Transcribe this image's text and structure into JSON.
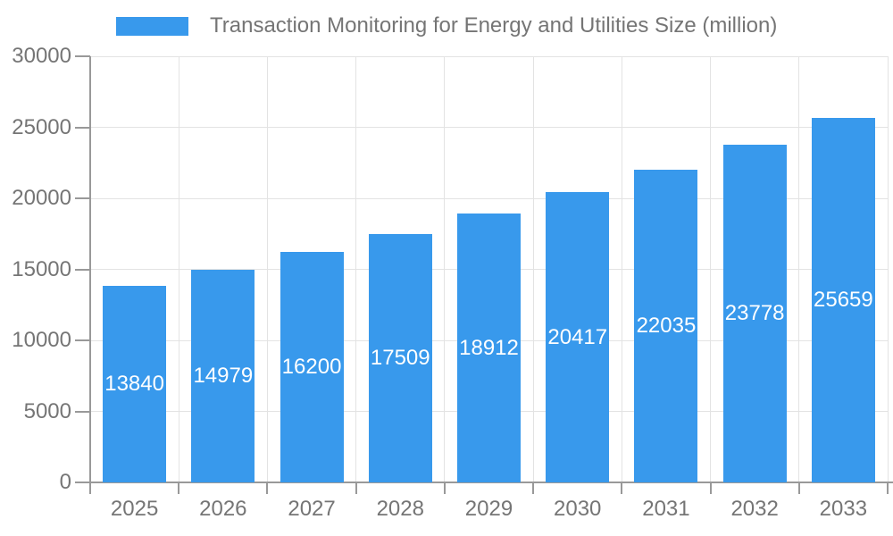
{
  "legend": {
    "label": "Transaction Monitoring for Energy and Utilities Size (million)"
  },
  "chart_data": {
    "type": "bar",
    "title": "Transaction Monitoring for Energy and Utilities Size (million)",
    "categories": [
      "2025",
      "2026",
      "2027",
      "2028",
      "2029",
      "2030",
      "2031",
      "2032",
      "2033"
    ],
    "series": [
      {
        "name": "Transaction Monitoring for Energy and Utilities Size (million)",
        "values": [
          13840,
          14979,
          16200,
          17509,
          18912,
          20417,
          22035,
          23778,
          25659
        ]
      }
    ],
    "xlabel": "",
    "ylabel": "",
    "ylim": [
      0,
      30000
    ],
    "y_ticks": [
      0,
      5000,
      10000,
      15000,
      20000,
      25000,
      30000
    ],
    "grid": true,
    "legend_position": "top",
    "value_labels": "inside-center",
    "colors": {
      "bar": "#3899EC",
      "value_label": "#FFFFFF",
      "text": "#757575",
      "axis_line": "#999999",
      "gridline": "#E3E3E3",
      "background": "#FFFFFF"
    }
  }
}
